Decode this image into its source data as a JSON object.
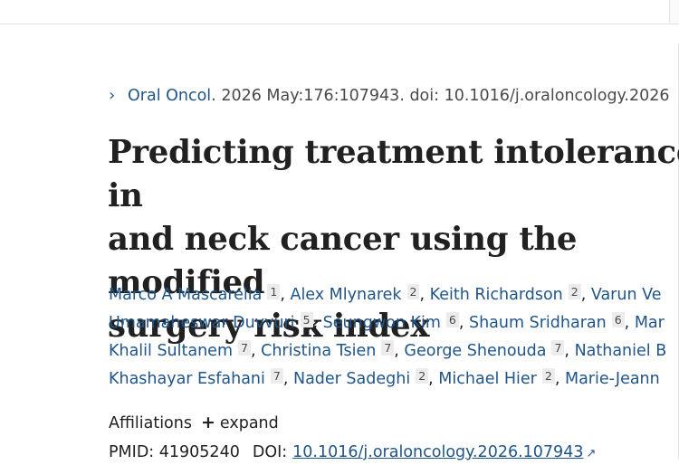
{
  "citation": {
    "journal": "Oral Oncol.",
    "details": " 2026 May:176:107943. doi: 10.1016/j.oraloncology.2026"
  },
  "title": {
    "line1": "Predicting treatment intolerance in",
    "line2": "and neck cancer using the modified",
    "line3": "surgery risk index"
  },
  "authors": [
    [
      {
        "name": "Marco A Mascarella",
        "aff": "1",
        "sep": ", "
      },
      {
        "name": "Alex Mlynarek",
        "aff": "2",
        "sep": ", "
      },
      {
        "name": "Keith Richardson",
        "aff": "2",
        "sep": ", "
      },
      {
        "name": "Varun Ve",
        "aff": "",
        "sep": ""
      }
    ],
    [
      {
        "name": "Umamaheswar Duvvuri",
        "aff": "5",
        "sep": ", "
      },
      {
        "name": "Seungwon Kim",
        "aff": "6",
        "sep": ", "
      },
      {
        "name": "Shaum Sridharan",
        "aff": "6",
        "sep": ", "
      },
      {
        "name": "Mar",
        "aff": "",
        "sep": ""
      }
    ],
    [
      {
        "name": "Khalil Sultanem",
        "aff": "7",
        "sep": ", "
      },
      {
        "name": "Christina Tsien",
        "aff": "7",
        "sep": ", "
      },
      {
        "name": "George Shenouda",
        "aff": "7",
        "sep": ", "
      },
      {
        "name": "Nathaniel B",
        "aff": "",
        "sep": ""
      }
    ],
    [
      {
        "name": "Khashayar Esfahani",
        "aff": "7",
        "sep": ", "
      },
      {
        "name": "Nader Sadeghi",
        "aff": "2",
        "sep": ", "
      },
      {
        "name": "Michael Hier",
        "aff": "2",
        "sep": ", "
      },
      {
        "name": "Marie-Jeann",
        "aff": "",
        "sep": ""
      }
    ]
  ],
  "affiliations": {
    "label": "Affiliations",
    "plus": "+",
    "expand": "expand"
  },
  "identifiers": {
    "pmid_label": "PMID:",
    "pmid": "41905240",
    "doi_label": "DOI:",
    "doi": "10.1016/j.oraloncology.2026.107943"
  },
  "icons": {
    "chevron": "chevron-right-icon",
    "external": "external-link-icon"
  },
  "colors": {
    "link": "#20558a",
    "text": "#212121",
    "badge_bg": "#ececec"
  }
}
